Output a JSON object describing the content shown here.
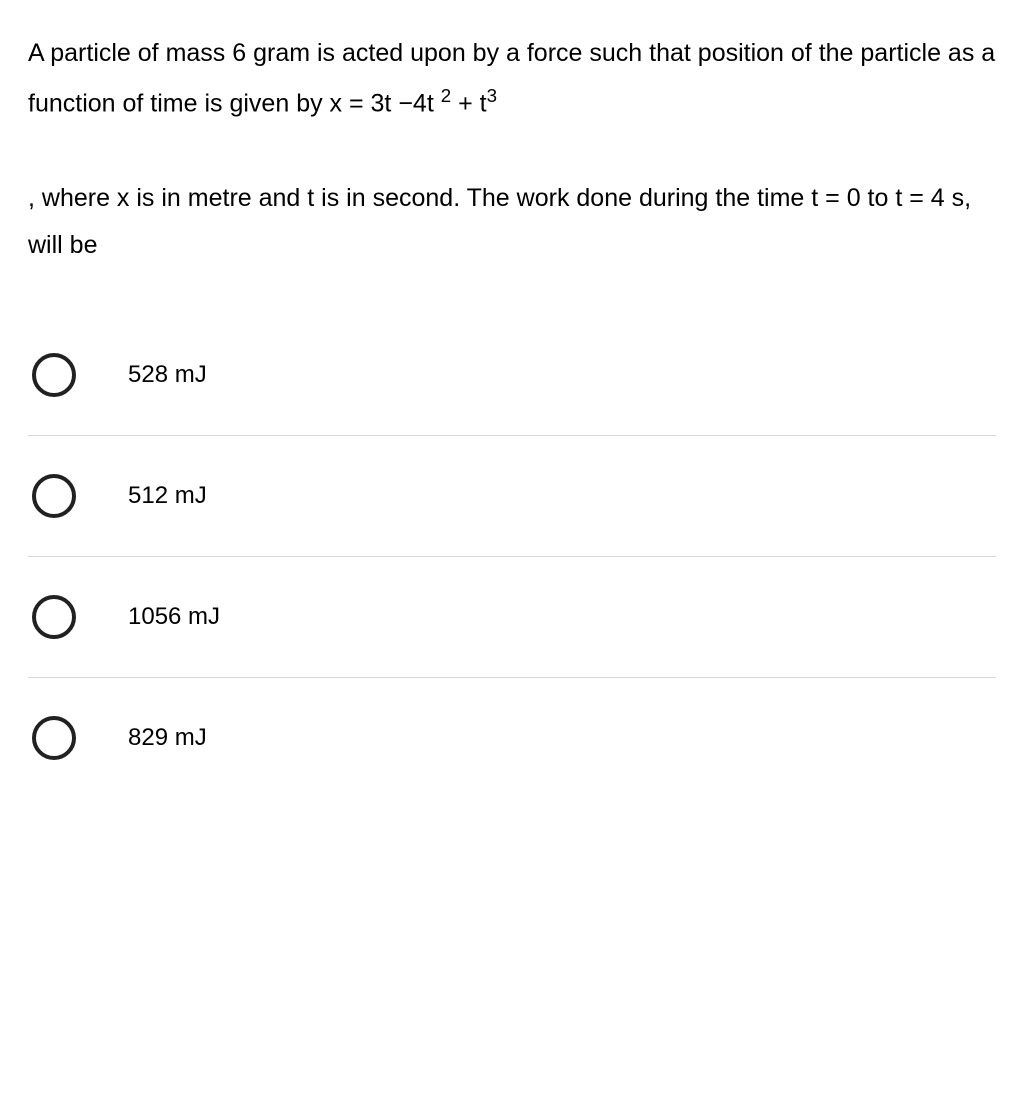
{
  "question": {
    "part1": "A particle of mass 6 gram is acted upon by a force such that position of the particle as a function of time is given by x = 3t −4t ",
    "exp1": "2",
    "part2": " + t",
    "exp2": "3",
    "part3": ", where x is in metre and t is in second. The work done during the time t = 0 to t = 4 s, will be"
  },
  "options": [
    {
      "label": "528 mJ"
    },
    {
      "label": "512 mJ"
    },
    {
      "label": "1056 mJ"
    },
    {
      "label": "829 mJ"
    }
  ],
  "colors": {
    "text": "#000000",
    "background": "#ffffff",
    "radio_border": "#212121",
    "divider": "#d8d8d8"
  }
}
